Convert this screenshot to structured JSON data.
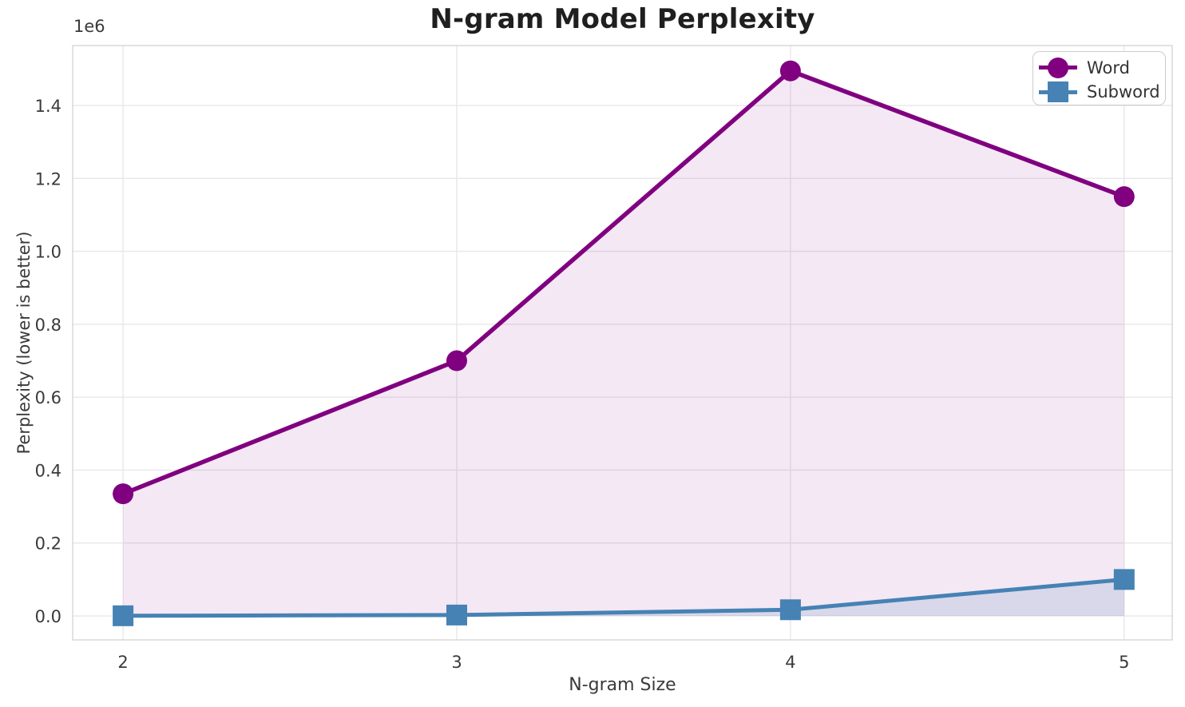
{
  "chart_data": {
    "type": "line",
    "title": "N-gram Model Perplexity",
    "xlabel": "N-gram Size",
    "ylabel": "Perplexity (lower is better)",
    "y_offset_label": "1e6",
    "x": [
      2,
      3,
      4,
      5
    ],
    "series": [
      {
        "name": "Word",
        "color": "#800080",
        "marker": "circle",
        "marker_size": 26,
        "line_width": 5.5,
        "fill_opacity": 0.09,
        "values": [
          335000,
          700000,
          1495000,
          1150000
        ]
      },
      {
        "name": "Subword",
        "color": "#4682b4",
        "marker": "square",
        "marker_size": 26,
        "line_width": 5,
        "fill_opacity": 0.15,
        "values": [
          500,
          2500,
          17000,
          100000
        ]
      }
    ],
    "xlim": [
      1.849,
      5.144
    ],
    "ylim": [
      -65700,
      1564500
    ],
    "xticks": {
      "values": [
        2,
        3,
        4,
        5
      ],
      "labels": [
        "2",
        "3",
        "4",
        "5"
      ]
    },
    "yticks": {
      "values": [
        0,
        200000,
        400000,
        600000,
        800000,
        1000000,
        1200000,
        1400000
      ],
      "labels": [
        "0.0",
        "0.2",
        "0.4",
        "0.6",
        "0.8",
        "1.0",
        "1.2",
        "1.4"
      ]
    },
    "grid": true,
    "legend_position": "upper right",
    "style": {
      "grid_color": "#e8e8e8",
      "spine_color": "#d5d5d5",
      "tick_color": "#3a3a3a",
      "title_color": "#1f1f1f",
      "legend_border_color": "#cccccc",
      "background": "#ffffff"
    }
  }
}
